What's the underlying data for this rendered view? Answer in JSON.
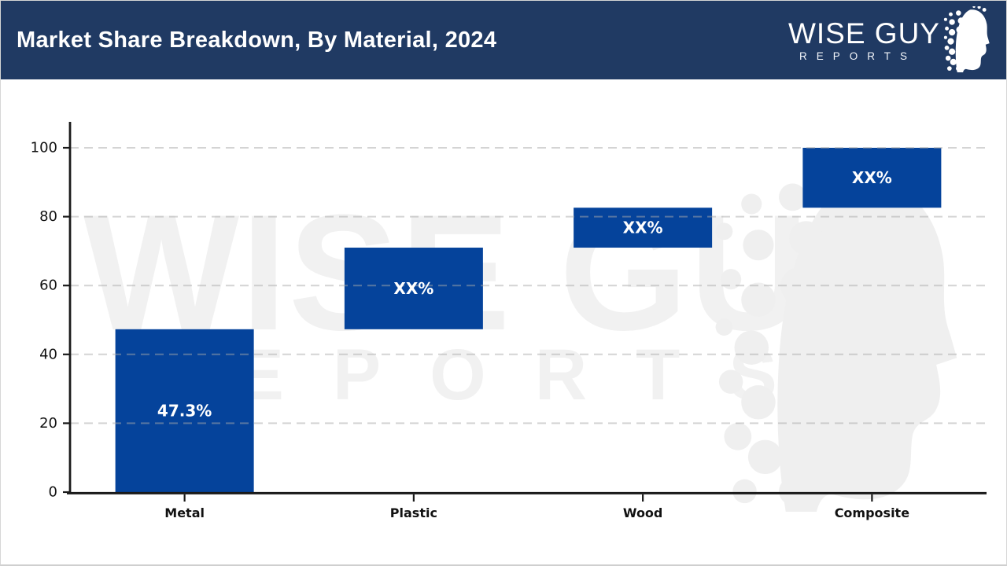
{
  "header": {
    "title": "Market Share Breakdown, By Material, 2024",
    "logo": {
      "line1": "WISE GUY",
      "line2": "REPORTS"
    }
  },
  "watermark": {
    "line1": "WISE GUY",
    "line2": "REPORTS"
  },
  "accent_colors": {
    "header_bg": "#203A63",
    "bar_blue": "#05439B",
    "bar_label": "#ffffff",
    "gridline": "rgba(170,170,170,0.5)",
    "axis": "#1a1a1a"
  },
  "chart_data": {
    "type": "bar",
    "subtype": "waterfall",
    "title": "Market Share Breakdown, By Material, 2024",
    "xlabel": "",
    "ylabel": "",
    "ylim": [
      0,
      100
    ],
    "yticks": [
      0,
      20,
      40,
      60,
      80,
      100
    ],
    "grid": "horizontal dashed",
    "legend": "none",
    "categories": [
      "Metal",
      "Plastic",
      "Wood",
      "Composite"
    ],
    "series": [
      {
        "name": "Market share (%)",
        "segments": [
          {
            "category": "Metal",
            "start": 0,
            "end": 47.3,
            "value": 47.3,
            "label": "47.3%"
          },
          {
            "category": "Plastic",
            "start": 47.3,
            "end": 71.0,
            "value": 23.7,
            "label": "XX%"
          },
          {
            "category": "Wood",
            "start": 71.0,
            "end": 82.6,
            "value": 11.6,
            "label": "XX%"
          },
          {
            "category": "Composite",
            "start": 82.6,
            "end": 100,
            "value": 17.4,
            "label": "XX%"
          }
        ]
      }
    ],
    "bar_color": "#05439B",
    "label_color": "#ffffff"
  }
}
